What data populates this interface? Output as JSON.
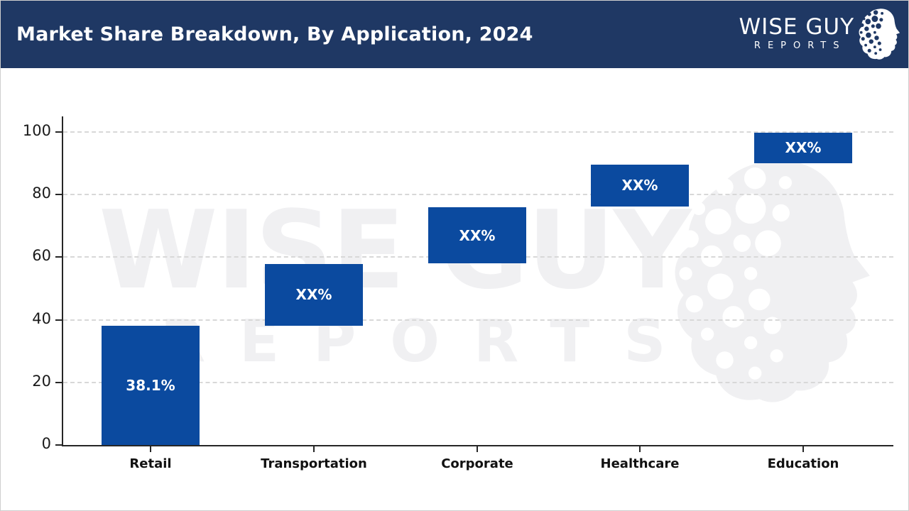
{
  "header": {
    "title": "Market Share Breakdown, By Application, 2024",
    "logo": {
      "line1": "WISE GUY",
      "line2": "REPORTS"
    }
  },
  "watermark": {
    "line1": "WISE GUY",
    "line2": "REPORTS"
  },
  "colors": {
    "header_bg": "#1f3864",
    "bar": "#0b4a9f",
    "grid": "#d8d8d8",
    "axis": "#262626",
    "watermark": "#f0f0f2",
    "bar_label": "#ffffff",
    "title_text": "#ffffff"
  },
  "chart_data": {
    "type": "bar",
    "subtype": "waterfall (floating segment bars)",
    "title": "Market Share Breakdown, By Application, 2024",
    "categories": [
      "Retail",
      "Transportation",
      "Corporate",
      "Healthcare",
      "Education"
    ],
    "segments": [
      {
        "category": "Retail",
        "start": 0,
        "end": 38.1,
        "label": "38.1%",
        "value_pct": 38.1
      },
      {
        "category": "Transportation",
        "start": 38.1,
        "end": 57.9,
        "label": "XX%",
        "value_pct_est": 19.8
      },
      {
        "category": "Corporate",
        "start": 58.0,
        "end": 76.0,
        "label": "XX%",
        "value_pct_est": 18.0
      },
      {
        "category": "Healthcare",
        "start": 76.3,
        "end": 89.6,
        "label": "XX%",
        "value_pct_est": 13.3
      },
      {
        "category": "Education",
        "start": 90.0,
        "end": 99.8,
        "label": "XX%",
        "value_pct_est": 9.8
      }
    ],
    "y_ticks": [
      0,
      20,
      40,
      60,
      80,
      100
    ],
    "ylim": [
      0,
      105
    ],
    "xlabel": "",
    "ylabel": "",
    "grid": "horizontal dashed",
    "legend": "none"
  }
}
